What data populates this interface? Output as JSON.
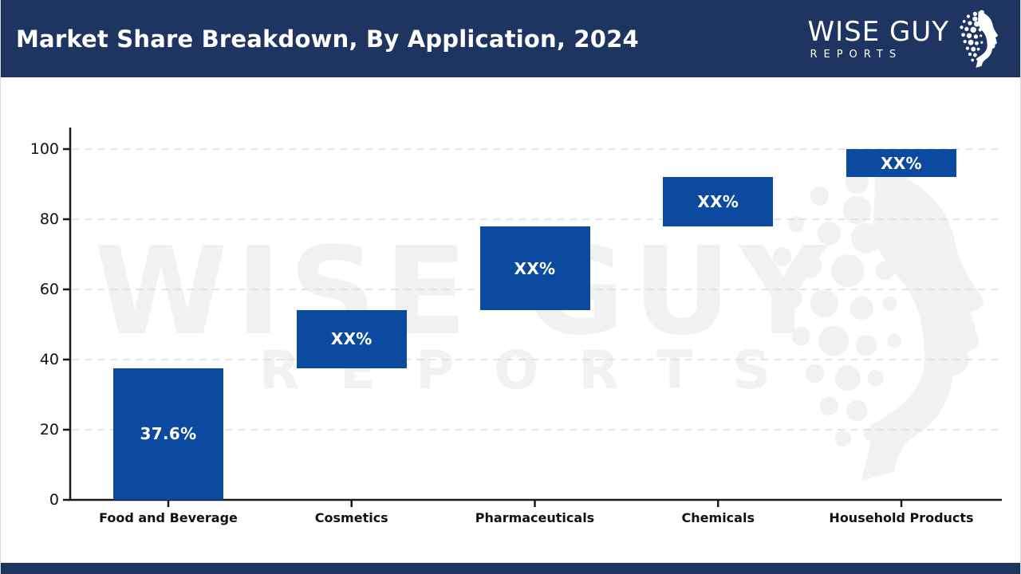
{
  "theme": {
    "navy": "#1f3561",
    "bar_blue": "#0b4a9e",
    "watermark_gray": "#f1f1f1",
    "grid_gray": "#e4e4e4"
  },
  "header": {
    "title": "Market Share Breakdown, By Application, 2024",
    "logo": {
      "line1": "WISE GUY",
      "line2": "REPORTS"
    }
  },
  "watermark": {
    "line1": "WISE GUY",
    "line2": "REPORTS"
  },
  "chart_data": {
    "type": "bar",
    "subtype": "floating-segment-breakdown",
    "title": "Market Share Breakdown, By Application, 2024",
    "xlabel": "",
    "ylabel": "",
    "categories": [
      "Food and Beverage",
      "Cosmetics",
      "Pharmaceuticals",
      "Chemicals",
      "Household Products"
    ],
    "segments": [
      {
        "category": "Food and Beverage",
        "start": 0,
        "end": 37.6,
        "label": "37.6%"
      },
      {
        "category": "Cosmetics",
        "start": 37.6,
        "end": 54,
        "label": "XX%"
      },
      {
        "category": "Pharmaceuticals",
        "start": 54,
        "end": 78,
        "label": "XX%"
      },
      {
        "category": "Chemicals",
        "start": 78,
        "end": 92,
        "label": "XX%"
      },
      {
        "category": "Household Products",
        "start": 92,
        "end": 100,
        "label": "XX%"
      }
    ],
    "yticks": [
      0,
      20,
      40,
      60,
      80,
      100
    ],
    "ylim": [
      0,
      106
    ],
    "grid": "dashed-horizontal",
    "legend": "none",
    "bar_color": "#0b4a9e",
    "bar_label_color": "#ffffff"
  }
}
